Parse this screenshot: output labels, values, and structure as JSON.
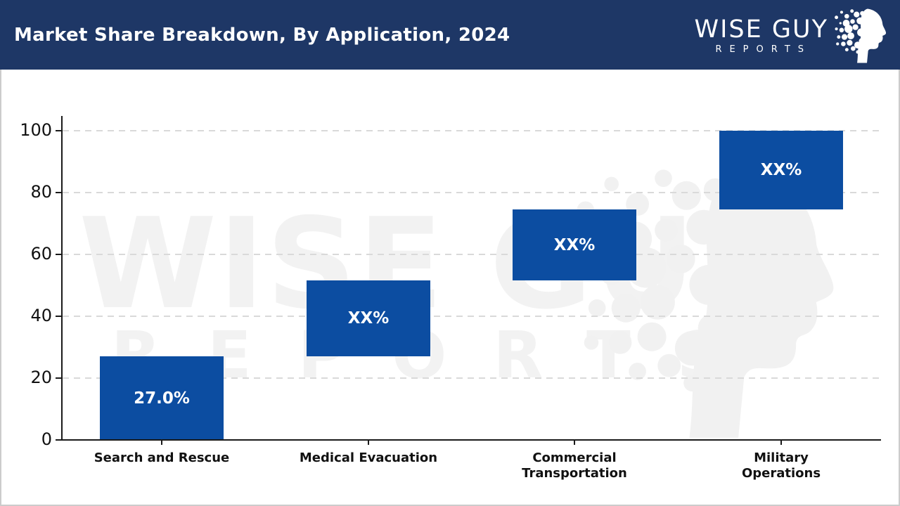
{
  "header": {
    "title": "Market Share Breakdown, By Application, 2024",
    "bg_color": "#1e3766",
    "logo": {
      "line1": "WISE GUY",
      "line2": "REPORTS"
    }
  },
  "watermark": {
    "line1": "WISE GU",
    "line2": "REPORTS"
  },
  "chart_data": {
    "type": "bar",
    "subtype": "waterfall-floating-bars",
    "title": "Market Share Breakdown, By Application, 2024",
    "categories": [
      "Search and Rescue",
      "Medical Evacuation",
      "Commercial Transportation",
      "Military Operations"
    ],
    "categories_lines": [
      [
        "Search and Rescue"
      ],
      [
        "Medical Evacuation"
      ],
      [
        "Commercial",
        "Transportation"
      ],
      [
        "Military",
        "Operations"
      ]
    ],
    "series": [
      {
        "name": "Market Share (%)",
        "segments": [
          {
            "category": "Search and Rescue",
            "from": 0,
            "to": 27,
            "label": "27.0%"
          },
          {
            "category": "Medical Evacuation",
            "from": 27,
            "to": 51.5,
            "label": "XX%"
          },
          {
            "category": "Commercial Transportation",
            "from": 51.5,
            "to": 74.5,
            "label": "XX%"
          },
          {
            "category": "Military Operations",
            "from": 74.5,
            "to": 100,
            "label": "XX%"
          }
        ]
      }
    ],
    "xlabel": "",
    "ylabel": "",
    "ylim": [
      0,
      100
    ],
    "yticks": [
      0,
      20,
      40,
      60,
      80,
      100
    ],
    "grid": true,
    "grid_style": "dashed",
    "legend": false,
    "bar_color": "#0c4da1",
    "bar_label_color": "#ffffff",
    "axis_color": "#1a1a1a",
    "grid_color": "#d9d9d9"
  }
}
